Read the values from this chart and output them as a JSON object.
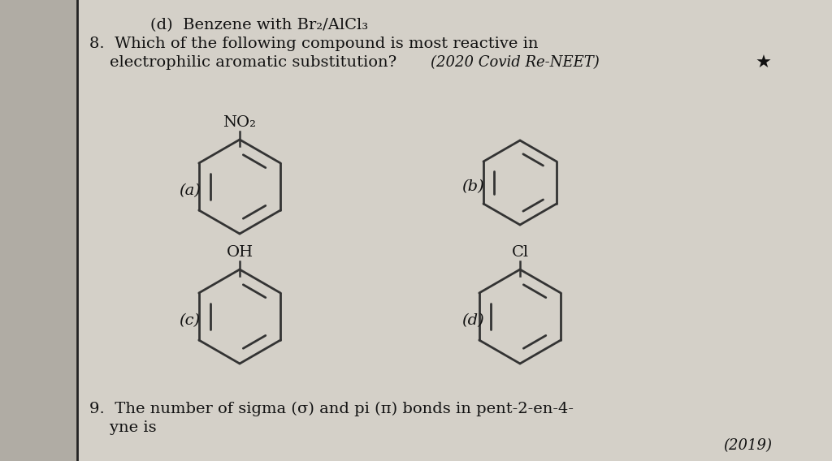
{
  "bg_color": "#d8d4cc",
  "left_panel_color": "#c0bdb5",
  "title_line1": "(d)  Benzene with Br₂/AlCl₃",
  "q8_line1": "8.  Which of the following compound is most reactive in",
  "q8_line2": "    electrophilic aromatic substitution?",
  "question_ref": "(2020 Covid Re-NEET)",
  "q9_line1": "9.  The number of sigma (σ) and pi (π) bonds in pent-2-en-4-",
  "q9_line2": "    yne is",
  "bottom_ref": "(2019)",
  "label_a": "(a)",
  "label_b": "(b)",
  "label_c": "(c)",
  "label_d": "(d)",
  "sub_a": "NO₂",
  "sub_c": "OH",
  "sub_d": "Cl",
  "font_size_main": 14,
  "font_size_label": 13,
  "font_size_sub": 12,
  "line_color": "#333333",
  "text_color": "#111111"
}
